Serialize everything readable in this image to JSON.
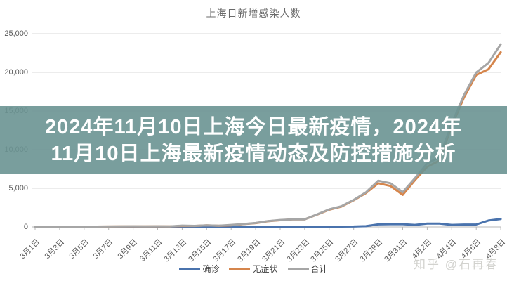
{
  "overlay": {
    "line1": "2024年11月10日上海今日最新疫情，2024年",
    "line2": "11月10日上海最新疫情动态及防控措施分析"
  },
  "watermark": "知乎 @石再春",
  "colors": {
    "confirmed": "#4a73ad",
    "asymptomatic": "#d5854c",
    "total": "#a6a6a6",
    "banner": "rgba(106,148,146,0.9)",
    "grid": "#d9d9d9",
    "axis": "#b7b7b7",
    "label": "#595959"
  },
  "chart_data": {
    "type": "line",
    "title": "上海日新增感染人数",
    "x": [
      "3月1日",
      "3月2日",
      "3月3日",
      "3月4日",
      "3月5日",
      "3月6日",
      "3月7日",
      "3月8日",
      "3月9日",
      "3月10日",
      "3月11日",
      "3月12日",
      "3月13日",
      "3月14日",
      "3月15日",
      "3月16日",
      "3月17日",
      "3月18日",
      "3月19日",
      "3月20日",
      "3月21日",
      "3月22日",
      "3月23日",
      "3月24日",
      "3月25日",
      "3月26日",
      "3月27日",
      "3月28日",
      "3月29日",
      "3月30日",
      "3月31日",
      "4月1日",
      "4月2日",
      "4月3日",
      "4月4日",
      "4月5日",
      "4月6日",
      "4月7日",
      "4月8日"
    ],
    "x_axis_tick_labels": [
      "3月1日",
      "3月3日",
      "3月5日",
      "3月7日",
      "3月9日",
      "3月11日",
      "3月13日",
      "3月15日",
      "3月17日",
      "3月19日",
      "3月21日",
      "3月23日",
      "3月25日",
      "3月27日",
      "3月29日",
      "3月31日",
      "4月2日",
      "4月4日",
      "4月6日",
      "4月8日"
    ],
    "ylim": [
      0,
      25000
    ],
    "y_ticks": [
      0,
      5000,
      10000,
      15000,
      20000,
      25000
    ],
    "y_tick_labels": [
      "0",
      "5,000",
      "10,000",
      "15,000",
      "20,000",
      "25,000"
    ],
    "grid": "horizontal",
    "legend_position": "bottom",
    "series": [
      {
        "name": "确诊",
        "color": "#4a73ad",
        "values": [
          1,
          3,
          2,
          3,
          0,
          3,
          4,
          3,
          4,
          11,
          5,
          1,
          41,
          9,
          5,
          8,
          57,
          8,
          17,
          24,
          31,
          4,
          4,
          29,
          38,
          45,
          50,
          96,
          326,
          355,
          358,
          260,
          438,
          425,
          268,
          311,
          322,
          824,
          1015
        ]
      },
      {
        "name": "无症状",
        "color": "#d5854c",
        "values": [
          1,
          5,
          14,
          16,
          28,
          45,
          51,
          62,
          76,
          64,
          78,
          64,
          128,
          130,
          197,
          150,
          203,
          366,
          492,
          734,
          865,
          977,
          979,
          1580,
          2231,
          2631,
          3450,
          4381,
          5656,
          5298,
          4144,
          6051,
          7788,
          8581,
          13086,
          16766,
          19660,
          20398,
          22609
        ]
      },
      {
        "name": "合计",
        "color": "#a6a6a6",
        "values": [
          2,
          8,
          16,
          19,
          28,
          48,
          55,
          65,
          80,
          75,
          83,
          65,
          169,
          139,
          202,
          158,
          260,
          374,
          509,
          758,
          896,
          981,
          983,
          1609,
          2269,
          2676,
          3500,
          4477,
          5982,
          5653,
          4502,
          6311,
          8226,
          9006,
          13354,
          17077,
          19982,
          21222,
          23624
        ]
      }
    ]
  }
}
